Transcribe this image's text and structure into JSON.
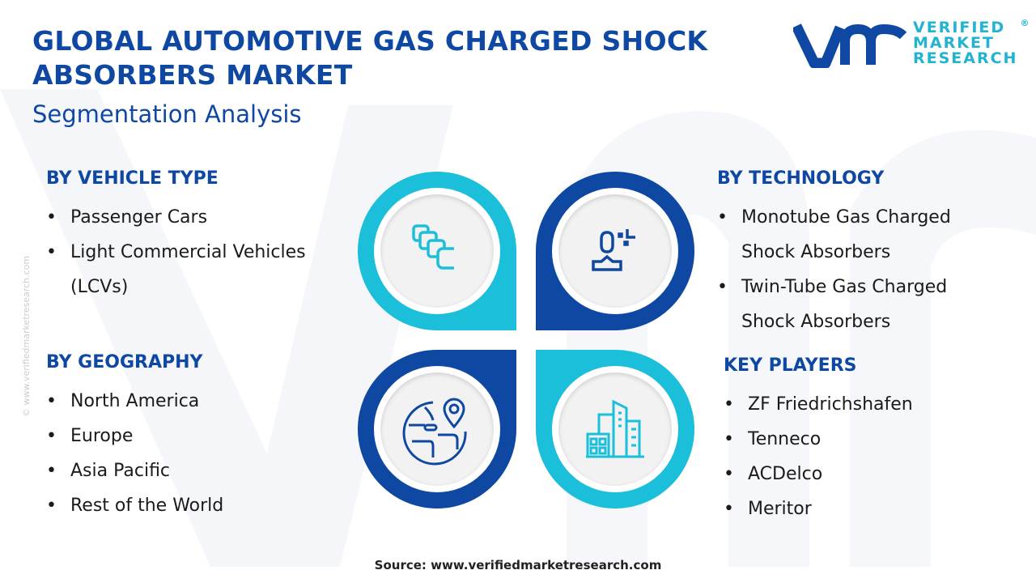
{
  "header": {
    "title_line1": "GLOBAL AUTOMOTIVE GAS CHARGED SHOCK",
    "title_line2": "ABSORBERS MARKET",
    "subtitle": "Segmentation Analysis"
  },
  "logo": {
    "mark": "vmr",
    "line1": "VERIFIED",
    "line2": "MARKET",
    "line3": "RESEARCH",
    "reg": "®"
  },
  "sections": {
    "vehicle": {
      "heading": "BY VEHICLE TYPE",
      "items": [
        "Passenger Cars",
        "Light Commercial Vehicles",
        "(LCVs)"
      ]
    },
    "technology": {
      "heading": "BY TECHNOLOGY",
      "items": [
        "Monotube Gas Charged",
        "Shock Absorbers",
        "Twin-Tube Gas Charged",
        "Shock Absorbers"
      ]
    },
    "geography": {
      "heading": "BY GEOGRAPHY",
      "items": [
        "North America",
        "Europe",
        "Asia Pacific",
        "Rest of the World"
      ]
    },
    "players": {
      "heading": "KEY PLAYERS",
      "items": [
        "ZF Friedrichshafen",
        "Tenneco",
        "ACDelco",
        "Meritor"
      ]
    }
  },
  "icons": [
    "stacked-cards-icon",
    "user-scan-icon",
    "globe-location-icon",
    "buildings-icon"
  ],
  "colors": {
    "dark_blue": "#0e48a3",
    "cyan": "#1cbfd9"
  },
  "side_text": "© www.verifiedmarketresearch.com",
  "source": "Source: www.verifiedmarketresearch.com"
}
